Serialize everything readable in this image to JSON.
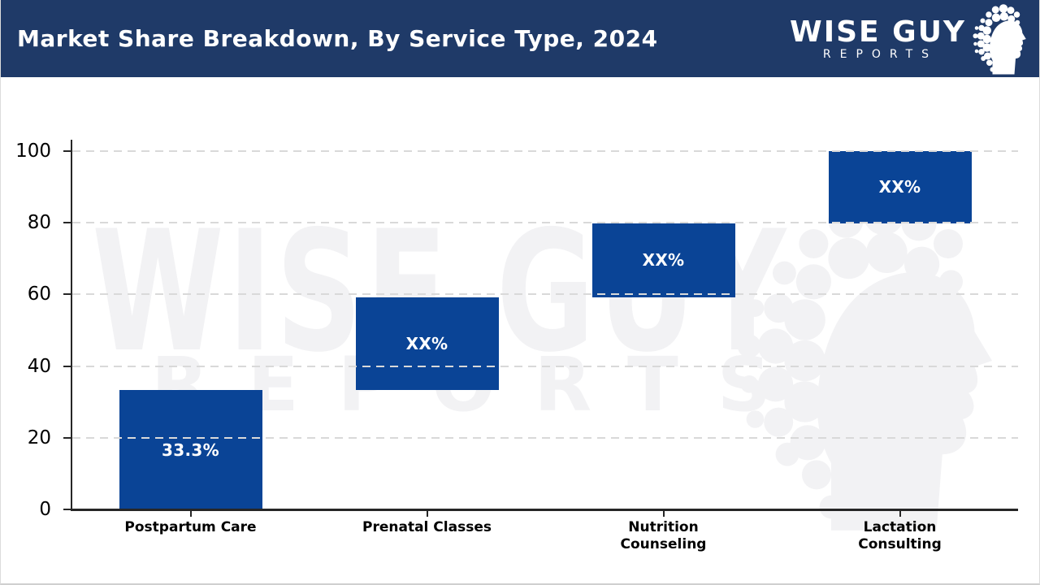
{
  "header": {
    "title": "Market Share Breakdown, By Service Type, 2024",
    "logo": {
      "line1": "WISE GUY",
      "line2": "REPORTS"
    }
  },
  "watermark": {
    "line1": "WISE GUY",
    "line2": "REPORTS"
  },
  "chart_data": {
    "type": "bar",
    "subtype": "waterfall",
    "title": "Market Share Breakdown, By Service Type, 2024",
    "xlabel": "",
    "ylabel": "",
    "ylim": [
      0,
      100
    ],
    "y_ticks": [
      0,
      20,
      40,
      60,
      80,
      100
    ],
    "grid": "horizontal dashed, drawn over bars",
    "legend": "none",
    "categories": [
      "Postpartum Care",
      "Prenatal Classes",
      "Nutrition\nCounseling",
      "Lactation\nConsulting"
    ],
    "bars": [
      {
        "category": "Postpartum Care",
        "label": "33.3%",
        "start": 0,
        "end": 33.3
      },
      {
        "category": "Prenatal Classes",
        "label": "XX%",
        "start": 33.3,
        "end": 59.3
      },
      {
        "category": "Nutrition Counseling",
        "label": "XX%",
        "start": 59.3,
        "end": 79.9
      },
      {
        "category": "Lactation Consulting",
        "label": "XX%",
        "start": 79.9,
        "end": 100
      }
    ],
    "bar_color": "#0A4496",
    "bar_label_color": "#FFFFFF"
  },
  "colors": {
    "header_bg": "#1F3A68",
    "bar": "#0A4496",
    "grid": "#D9D9D9",
    "axis": "#262626",
    "watermark": "#F2F2F4"
  }
}
